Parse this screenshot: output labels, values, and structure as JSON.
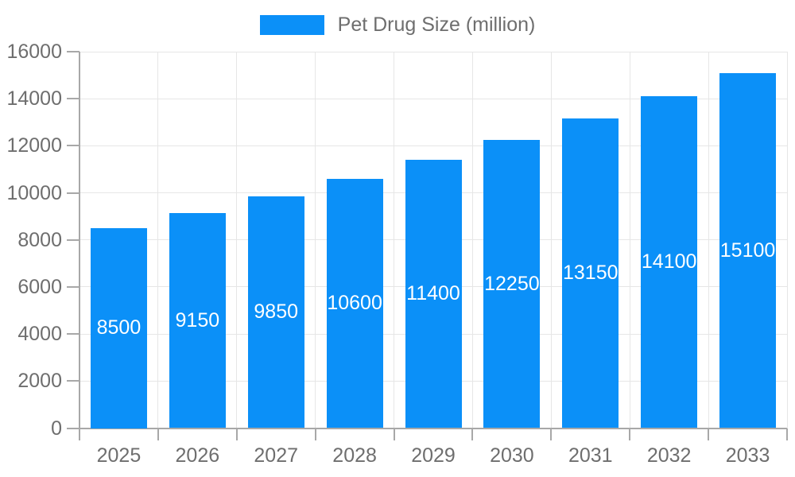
{
  "legend": {
    "label": "Pet Drug Size (million)"
  },
  "colors": {
    "bar": "#0b90f8",
    "bar_label": "#ffffff",
    "axis": "#a8a8a8",
    "grid": "#e6e6e6",
    "text": "#6e6e6e",
    "background": "#ffffff"
  },
  "chart_data": {
    "type": "bar",
    "title": "",
    "series_name": "Pet Drug Size (million)",
    "categories": [
      "2025",
      "2026",
      "2027",
      "2028",
      "2029",
      "2030",
      "2031",
      "2032",
      "2033"
    ],
    "values": [
      8500,
      9150,
      9850,
      10600,
      11400,
      12250,
      13150,
      14100,
      15100
    ],
    "bar_value_labels": [
      "8500",
      "9150",
      "9850",
      "10600",
      "11400",
      "12250",
      "13150",
      "14100",
      "15100"
    ],
    "xlabel": "",
    "ylabel": "",
    "ylim": [
      0,
      16000
    ],
    "yticks": [
      0,
      2000,
      4000,
      6000,
      8000,
      10000,
      12000,
      14000,
      16000
    ],
    "ytick_labels": [
      "0",
      "2000",
      "4000",
      "6000",
      "8000",
      "10000",
      "12000",
      "14000",
      "16000"
    ],
    "grid": true,
    "legend_position": "top",
    "value_labels_position": "inside-center"
  }
}
